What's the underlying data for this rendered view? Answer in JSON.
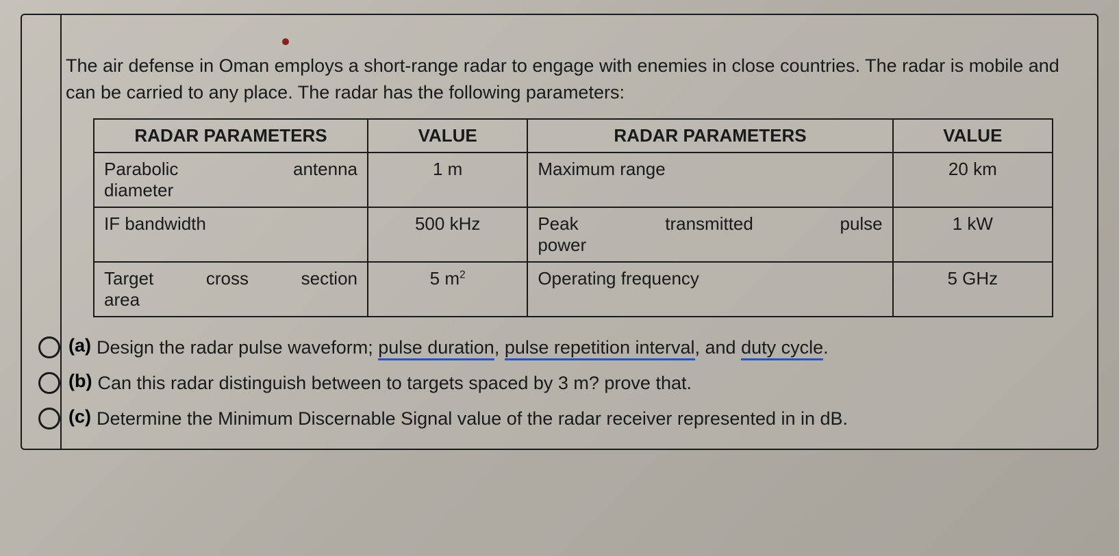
{
  "intro": "The air defense in Oman employs a short-range radar to engage with enemies in close countries. The radar is mobile and can be carried to any place. The radar has the following parameters:",
  "table": {
    "headers": [
      "RADAR PARAMETERS",
      "VALUE",
      "RADAR PARAMETERS",
      "VALUE"
    ],
    "rows": [
      {
        "p1": "Parabolic antenna diameter",
        "v1": "1 m",
        "p2": "Maximum range",
        "v2": "20 km"
      },
      {
        "p1": "IF bandwidth",
        "v1": "500 kHz",
        "p2": "Peak transmitted pulse power",
        "v2": "1 kW"
      },
      {
        "p1": "Target cross section area",
        "v1": "5 m²",
        "p2": "Operating frequency",
        "v2": "5 GHz"
      }
    ],
    "border_color": "#1a1a1a",
    "header_bg": "#c5c2ba",
    "font_size_pt": 20
  },
  "questions": {
    "a": {
      "label": "(a)",
      "prefix": "Design the radar pulse waveform; ",
      "u1": "pulse duration",
      "mid1": ", ",
      "u2": "pulse repetition interval",
      "mid2": ", and ",
      "u3": "duty cycle",
      "suffix": "."
    },
    "b": {
      "label": "(b)",
      "text": "Can this radar distinguish between to targets spaced by 3 m? prove that."
    },
    "c": {
      "label": "(c)",
      "text": "Determine the Minimum Discernable Signal value of the radar receiver represented in in dB."
    }
  },
  "colors": {
    "page_bg": "#b8b5ad",
    "text": "#1a1a1a",
    "underline": "#2a4fbf",
    "red_dot": "#8b2020"
  }
}
